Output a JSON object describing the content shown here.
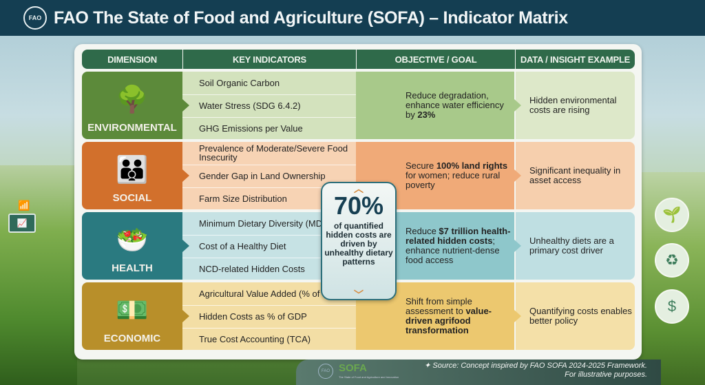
{
  "header": {
    "logo_text": "FAO",
    "title": "FAO  The State of Food and Agriculture (SOFA) – Indicator Matrix"
  },
  "columns": [
    "DIMENSION",
    "KEY INDICATORS",
    "OBJECTIVE / GOAL",
    "DATA / INSIGHT EXAMPLE"
  ],
  "rows": [
    {
      "dimension": "ENVIRONMENTAL",
      "icon": "tree-leaf-icon",
      "indicators": [
        "Soil Organic Carbon",
        "Water Stress (SDG 6.4.2)",
        "GHG Emissions per Value"
      ],
      "objective": {
        "pre": "Reduce degradation, enhance water efficiency by ",
        "bold": "23%",
        "post": ""
      },
      "insight": "Hidden environmental costs are rising",
      "colors": {
        "dim": "#5c8a3a",
        "ind": "#d3e2bd",
        "obj": "#a8c98a",
        "ins": "#dde8c9"
      }
    },
    {
      "dimension": "SOCIAL",
      "icon": "family-icon",
      "indicators": [
        "Prevalence of Moderate/Severe Food Insecurity",
        "Gender Gap in Land Ownership",
        "Farm Size Distribution"
      ],
      "objective": {
        "pre": "Secure ",
        "bold": "100% land rights",
        "post": " for women; reduce rural poverty"
      },
      "insight": "Significant inequality in asset access",
      "colors": {
        "dim": "#d2702c",
        "ind": "#f7d3b4",
        "obj": "#f0aa78",
        "ins": "#f6cfad"
      }
    },
    {
      "dimension": "HEALTH",
      "icon": "food-bowl-icon",
      "indicators": [
        "Minimum Dietary Diversity (MDD-W)",
        "Cost of a Healthy Diet",
        "NCD-related Hidden Costs"
      ],
      "objective": {
        "pre": "Reduce ",
        "bold": "$7 trillion health-related hidden costs",
        "post": "; enhance nutrient-dense food access"
      },
      "insight": "Unhealthy diets are a primary cost driver",
      "colors": {
        "dim": "#2a7a80",
        "ind": "#c6e2e4",
        "obj": "#8ec7cb",
        "ins": "#bfdfe2"
      }
    },
    {
      "dimension": "ECONOMIC",
      "icon": "money-chart-gear-icon",
      "indicators": [
        "Agricultural Value Added (% of GDP)",
        "Hidden Costs as % of GDP",
        "True Cost Accounting (TCA)"
      ],
      "objective": {
        "pre": "Shift from simple assessment to ",
        "bold": "value-driven agrifood transformation",
        "post": ""
      },
      "insight": "Quantifying costs enables better policy",
      "colors": {
        "dim": "#b88f2a",
        "ind": "#f3dea5",
        "obj": "#ecc86f",
        "ins": "#f4e0a8"
      }
    }
  ],
  "badge": {
    "value": "70%",
    "text": "of quantified hidden costs are driven by unhealthy dietary patterns"
  },
  "footer": {
    "logo_text": "FAO",
    "sofa_logo": "SOFA",
    "sofa_sub": "The State of Food and Agriculture and Innovation",
    "source_line1": "Source: Concept inspired by FAO SOFA 2024-2025 Framework.",
    "source_line2": "For illustrative purposes."
  }
}
